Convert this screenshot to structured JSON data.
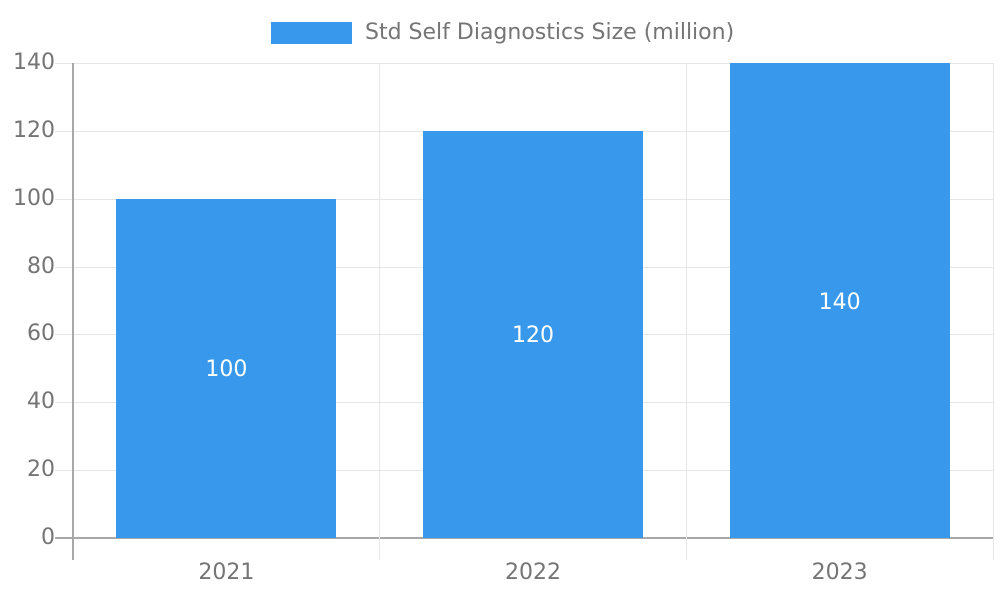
{
  "chart_data": {
    "type": "bar",
    "title": "",
    "categories": [
      "2021",
      "2022",
      "2023"
    ],
    "series": [
      {
        "name": "Std Self Diagnostics Size (million)",
        "values": [
          100,
          120,
          140
        ]
      }
    ],
    "bar_value_labels": [
      "100",
      "120",
      "140"
    ],
    "xlabel": "",
    "ylabel": "",
    "ylim": [
      0,
      140
    ],
    "ytick_step": 20,
    "ytick_labels": [
      "0",
      "20",
      "40",
      "60",
      "80",
      "100",
      "120",
      "140"
    ],
    "grid": true,
    "legend_position": "top-center"
  },
  "colors": {
    "bar": "#3899EC",
    "gridline": "#E6E6E6",
    "tick": "#E0E0E0",
    "axis_line": "#A8A8A8",
    "axis_text": "#757575",
    "legend_text": "#757575",
    "bar_value_text": "#FFFFFF",
    "background": "#FFFFFF"
  }
}
